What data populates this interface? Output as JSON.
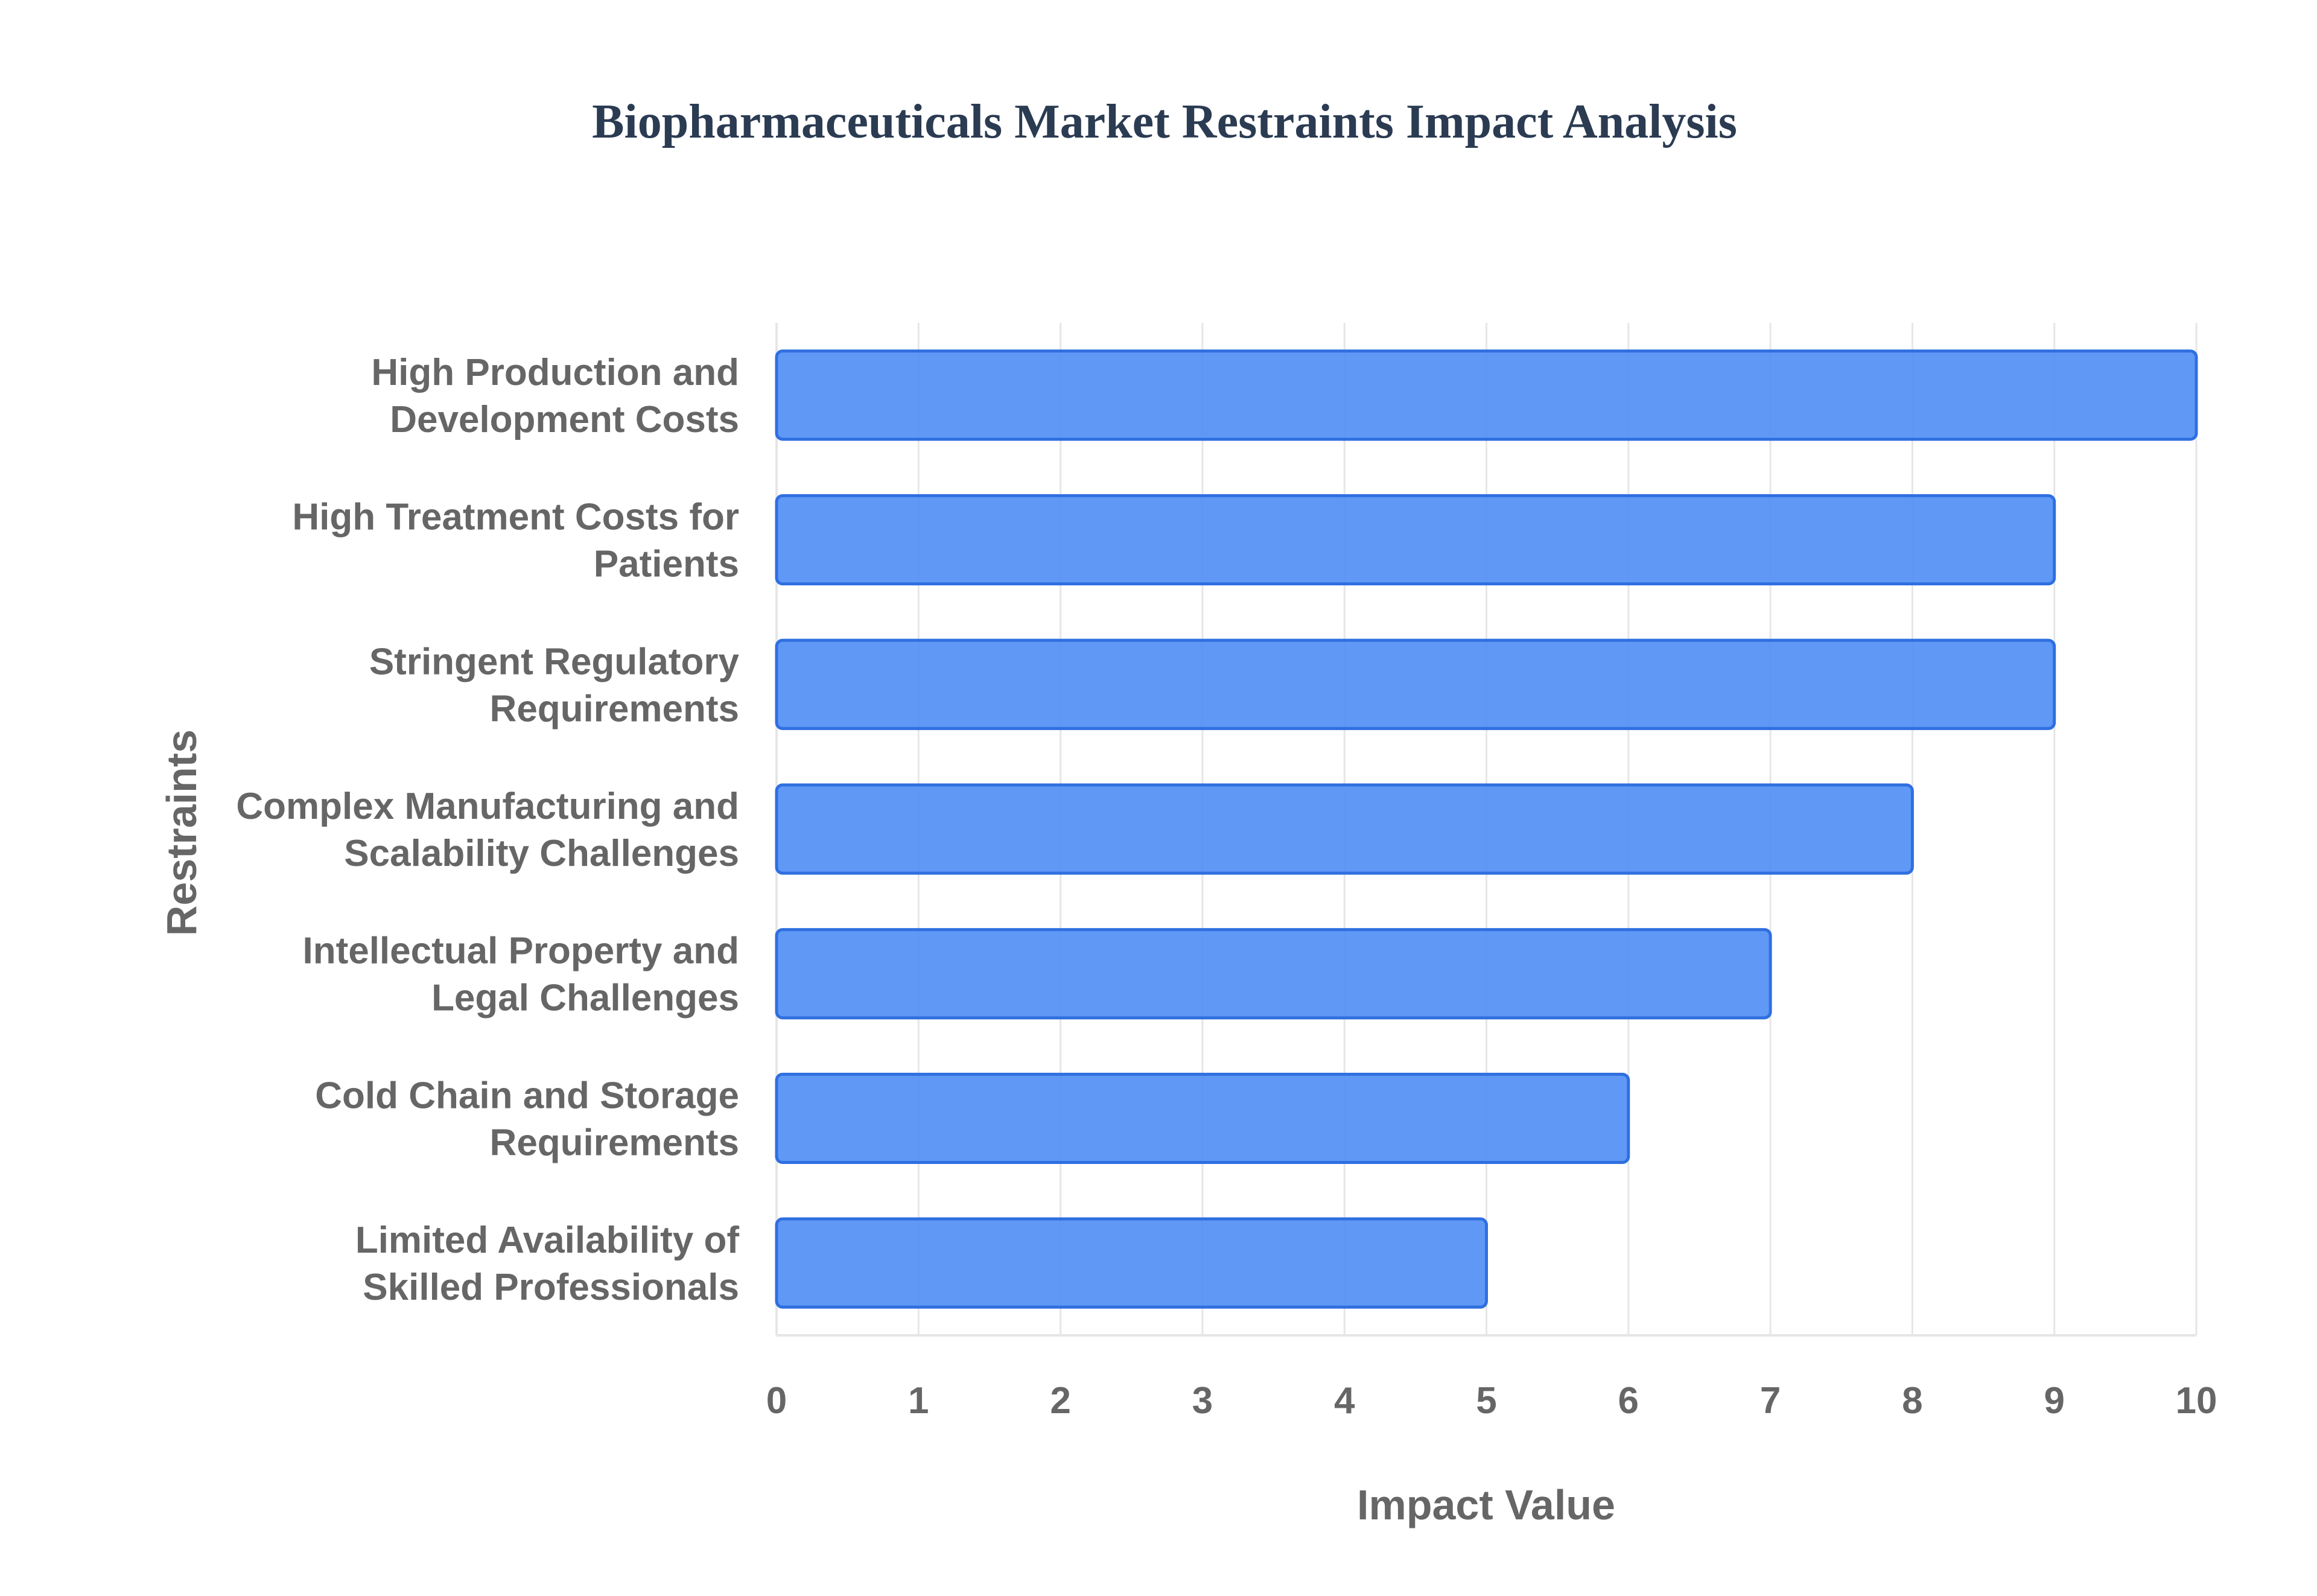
{
  "chart_data": {
    "type": "bar",
    "orientation": "horizontal",
    "title": "Biopharmaceuticals Market Restraints Impact Analysis",
    "xlabel": "Impact Value",
    "ylabel": "Restraints",
    "xlim": [
      0,
      10
    ],
    "xticks": [
      "0",
      "1",
      "2",
      "3",
      "4",
      "5",
      "6",
      "7",
      "8",
      "9",
      "10"
    ],
    "grid": true,
    "legend": "none",
    "categories": [
      [
        "High Production and",
        "Development Costs"
      ],
      [
        "High Treatment Costs for",
        "Patients"
      ],
      [
        "Stringent Regulatory",
        "Requirements"
      ],
      [
        "Complex Manufacturing and",
        "Scalability Challenges"
      ],
      [
        "Intellectual Property and",
        "Legal Challenges"
      ],
      [
        "Cold Chain and Storage",
        "Requirements"
      ],
      [
        "Limited Availability of",
        "Skilled Professionals"
      ]
    ],
    "values": [
      10,
      9,
      9,
      8,
      7,
      6,
      5
    ],
    "colors": {
      "bar_fill": "#4f8df5",
      "bar_stroke": "#2f6fe0",
      "title": "#2a3b52",
      "label": "#666666",
      "grid": "#e6e6e6"
    }
  }
}
